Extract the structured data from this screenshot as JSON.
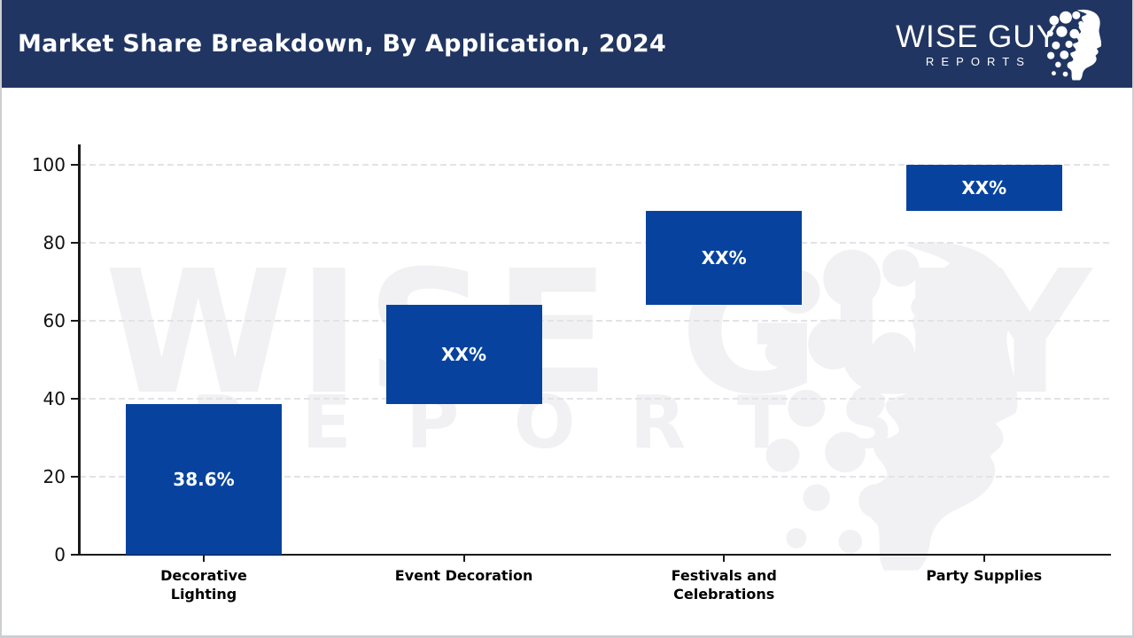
{
  "header": {
    "title": "Market Share Breakdown, By Application, 2024",
    "logo": {
      "line1": "WISE GUY",
      "line2": "REPORTS"
    }
  },
  "watermark": {
    "line1": "WISE GUY",
    "line2": "REPORTS"
  },
  "colors": {
    "header_bg": "#203561",
    "bar_blue": "#07439e",
    "grid": "#e3e3e5",
    "axis": "#1a1a1a",
    "watermark": "#f1f1f3"
  },
  "chart_data": {
    "type": "bar",
    "subtype": "waterfall",
    "title": "Market Share Breakdown, By Application, 2024",
    "categories": [
      "Decorative\nLighting",
      "Event Decoration",
      "Festivals and\nCelebrations",
      "Party Supplies"
    ],
    "segments": [
      {
        "category": "Decorative Lighting",
        "start": 0,
        "end": 38.6,
        "label": "38.6%"
      },
      {
        "category": "Event Decoration",
        "start": 38.6,
        "end": 64.1,
        "label": "XX%"
      },
      {
        "category": "Festivals and Celebrations",
        "start": 64.1,
        "end": 88.2,
        "label": "XX%"
      },
      {
        "category": "Party Supplies",
        "start": 88.2,
        "end": 100,
        "label": "XX%"
      }
    ],
    "xlabel": "",
    "ylabel": "",
    "ylim": [
      0,
      105
    ],
    "yticks": [
      0,
      20,
      40,
      60,
      80,
      100
    ],
    "grid": "dashed-horizontal",
    "legend": "none"
  }
}
